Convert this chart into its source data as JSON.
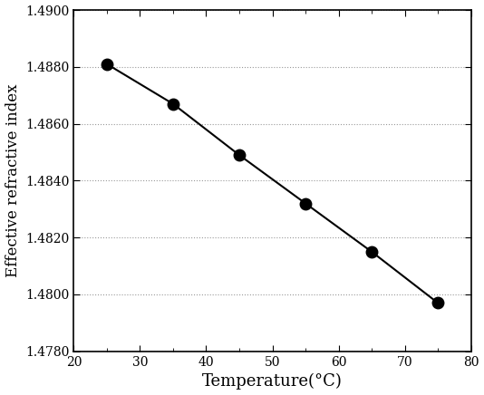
{
  "x": [
    25,
    35,
    45,
    55,
    65,
    75
  ],
  "y": [
    1.4881,
    1.4867,
    1.4849,
    1.4832,
    1.4815,
    1.4797
  ],
  "xlim": [
    20,
    80
  ],
  "ylim": [
    1.478,
    1.49
  ],
  "xticks": [
    20,
    30,
    40,
    50,
    60,
    70,
    80
  ],
  "yticks": [
    1.478,
    1.48,
    1.482,
    1.484,
    1.486,
    1.488,
    1.49
  ],
  "xlabel": "Temperature(°C)",
  "ylabel": "Effective refractive index",
  "line_color": "#000000",
  "marker_color": "#000000",
  "marker_size": 9,
  "line_width": 1.5,
  "grid_color": "#999999",
  "background_color": "#ffffff",
  "figure_width": 5.34,
  "figure_height": 4.36,
  "dpi": 100
}
